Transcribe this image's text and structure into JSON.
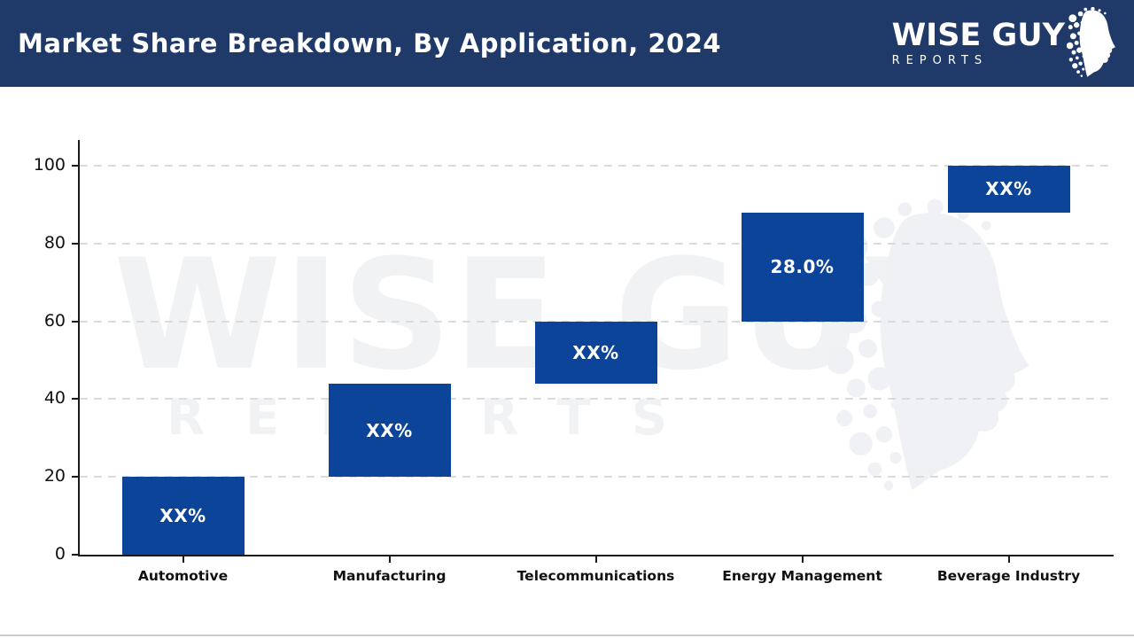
{
  "header": {
    "title": "Market Share Breakdown, By Application, 2024",
    "logo": {
      "line1": "WISE GUY",
      "line2": "REPORTS",
      "face_icon": "dotted-head-profile"
    }
  },
  "watermark": {
    "line1": "WISE GUY",
    "line2": "REPORTS",
    "face_icon": "dotted-head-profile"
  },
  "colors": {
    "header_bg": "#1f3a68",
    "bar": "#0c4499",
    "grid": "#dcdcdc",
    "watermark": "#f1f2f4",
    "axis": "#1a1a1a",
    "bar_label": "#ffffff"
  },
  "chart_data": {
    "type": "bar",
    "subtype": "waterfall",
    "title": "Market Share Breakdown, By Application, 2024",
    "xlabel": "",
    "ylabel": "",
    "categories": [
      "Automotive",
      "Manufacturing",
      "Telecommunications",
      "Energy Management",
      "Beverage Industry"
    ],
    "segments": [
      {
        "category": "Automotive",
        "start": 0,
        "end": 20,
        "value": 20,
        "label": "XX%"
      },
      {
        "category": "Manufacturing",
        "start": 20,
        "end": 44,
        "value": 24,
        "label": "XX%"
      },
      {
        "category": "Telecommunications",
        "start": 44,
        "end": 60,
        "value": 16,
        "label": "XX%"
      },
      {
        "category": "Energy Management",
        "start": 60,
        "end": 88,
        "value": 28,
        "label": "28.0%"
      },
      {
        "category": "Beverage Industry",
        "start": 88,
        "end": 100,
        "value": 12,
        "label": "XX%"
      }
    ],
    "ylim": [
      0,
      100
    ],
    "yticks": [
      0,
      20,
      40,
      60,
      80,
      100
    ],
    "grid": "horizontal-dashed",
    "legend": "none"
  }
}
